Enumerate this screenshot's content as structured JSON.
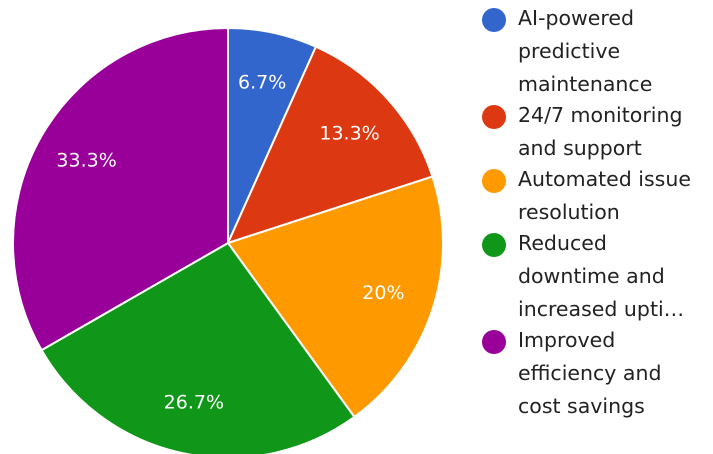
{
  "chart_data": {
    "type": "pie",
    "categories": [
      "AI-powered predictive maintenance",
      "24/7 monitoring and support",
      "Automated issue resolution",
      "Reduced downtime and increased upti…",
      "Improved efficiency and cost savings"
    ],
    "values": [
      6.7,
      13.3,
      20,
      26.7,
      33.3
    ],
    "data_labels": [
      "6.7%",
      "13.3%",
      "20%",
      "26.7%",
      "33.3%"
    ],
    "colors": [
      "#3366cc",
      "#dc3912",
      "#ff9900",
      "#109618",
      "#990099"
    ],
    "legend_placement": "right",
    "title": "",
    "xlabel": "",
    "ylabel": ""
  },
  "legend": {
    "items": [
      {
        "label_lines": [
          "AI-powered",
          "predictive",
          "maintenance"
        ]
      },
      {
        "label_lines": [
          "24/7 monitoring",
          "and support"
        ]
      },
      {
        "label_lines": [
          "Automated issue",
          "resolution"
        ]
      },
      {
        "label_lines": [
          "Reduced",
          "downtime and",
          "increased upti…"
        ]
      },
      {
        "label_lines": [
          "Improved",
          "efficiency and",
          "cost savings"
        ]
      }
    ]
  }
}
